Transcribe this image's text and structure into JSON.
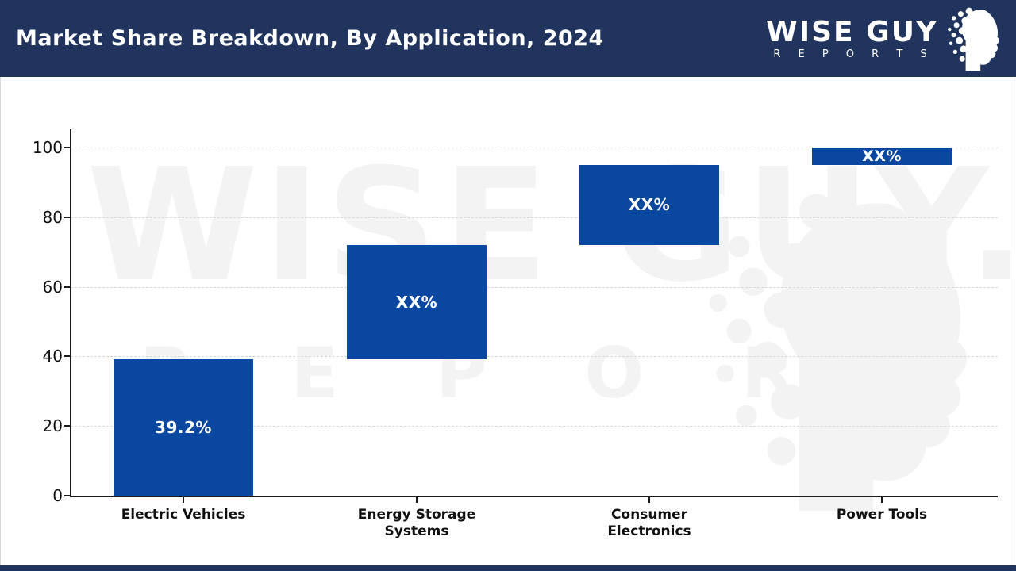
{
  "header": {
    "title": "Market Share Breakdown, By Application, 2024",
    "bg_color": "#20345e",
    "logo": {
      "line1": "WISE GUY",
      "line2": "R E P O R T S"
    }
  },
  "watermark": {
    "line1": "WISE GUY.",
    "line2": "R E P O R T S"
  },
  "chart_data": {
    "type": "bar",
    "subtype": "waterfall",
    "title": "Market Share Breakdown, By Application, 2024",
    "categories": [
      "Electric Vehicles",
      "Energy Storage Systems",
      "Consumer Electronics",
      "Power Tools"
    ],
    "category_lines": [
      [
        "Electric Vehicles"
      ],
      [
        "Energy Storage",
        "Systems"
      ],
      [
        "Consumer",
        "Electronics"
      ],
      [
        "Power Tools"
      ]
    ],
    "segments": [
      {
        "category": "Electric Vehicles",
        "start": 0,
        "end": 39.2,
        "label": "39.2%"
      },
      {
        "category": "Energy Storage Systems",
        "start": 39.2,
        "end": 72,
        "label": "XX%"
      },
      {
        "category": "Consumer Electronics",
        "start": 72,
        "end": 95,
        "label": "XX%"
      },
      {
        "category": "Power Tools",
        "start": 95,
        "end": 100,
        "label": "XX%"
      }
    ],
    "yticks": [
      0,
      20,
      40,
      60,
      80,
      100
    ],
    "ylim": [
      0,
      105
    ],
    "xlabel": "",
    "ylabel": "",
    "bar_color": "#0a47a0",
    "grid": "horizontal-dashed",
    "legend": "none"
  }
}
